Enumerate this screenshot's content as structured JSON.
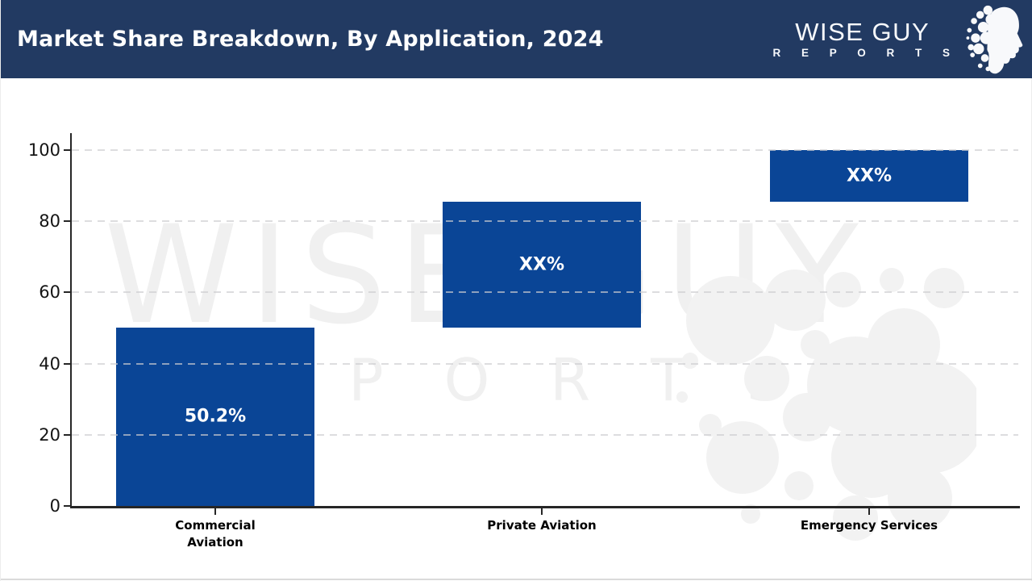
{
  "header": {
    "title": "Market Share Breakdown, By Application, 2024",
    "bg_color": "#223a62",
    "logo": {
      "line1": "WISE GUY",
      "line2": "R E P O R T S"
    }
  },
  "watermark": {
    "line1": "WISE GUY",
    "line2": "R E P O R T S"
  },
  "chart_data": {
    "type": "bar",
    "subtype": "waterfall-floating-segments",
    "title": "Market Share Breakdown, By Application, 2024",
    "categories": [
      [
        "Commercial",
        "Aviation"
      ],
      [
        "Private Aviation"
      ],
      [
        "Emergency Services"
      ]
    ],
    "segments": [
      {
        "name": "Commercial Aviation",
        "label": "50.2%",
        "start": 0,
        "end": 50.2
      },
      {
        "name": "Private Aviation",
        "label": "XX%",
        "start": 50.2,
        "end": 85.5
      },
      {
        "name": "Emergency Services",
        "label": "XX%",
        "start": 85.5,
        "end": 100
      }
    ],
    "ylim": [
      0,
      100
    ],
    "yticks": [
      0,
      20,
      40,
      60,
      80,
      100
    ],
    "xlabel": "",
    "ylabel": "",
    "grid": "horizontal dashed, drawn above bars",
    "legend": "none",
    "bar_color": "#0a4596",
    "bar_label_color": "#ffffff",
    "axis_color": "#262626"
  }
}
